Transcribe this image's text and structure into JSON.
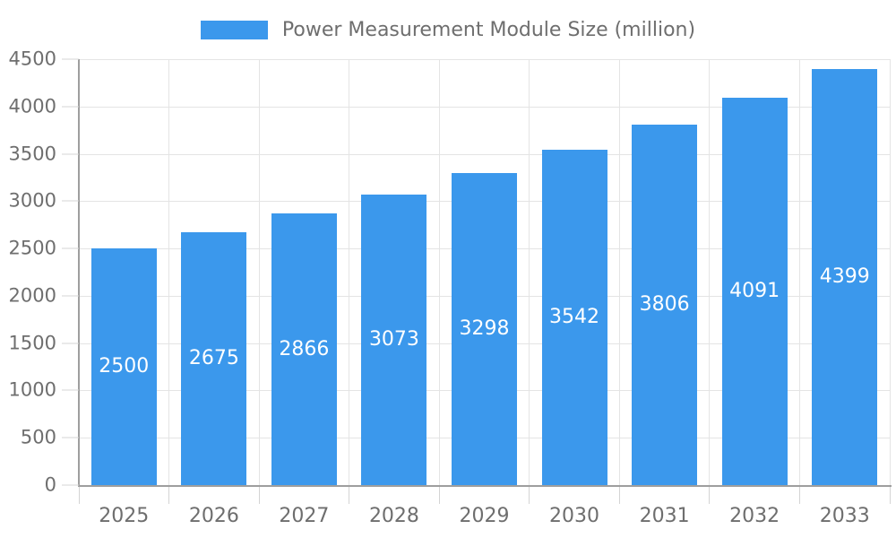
{
  "legend": {
    "label": "Power Measurement Module Size (million)"
  },
  "chart_data": {
    "type": "bar",
    "title": "Power Measurement Module Size (million)",
    "categories": [
      "2025",
      "2026",
      "2027",
      "2028",
      "2029",
      "2030",
      "2031",
      "2032",
      "2033"
    ],
    "values": [
      2500,
      2675,
      2866,
      3073,
      3298,
      3542,
      3806,
      4091,
      4399
    ],
    "series_name": "Power Measurement Module Size (million)",
    "xlabel": "",
    "ylabel": "",
    "ylim": [
      0,
      4500
    ],
    "yticks": [
      0,
      500,
      1000,
      1500,
      2000,
      2500,
      3000,
      3500,
      4000,
      4500
    ],
    "grid": true,
    "legend_position": "top-center",
    "value_labels": "inside-center",
    "colors": {
      "bar": "#3b98ec",
      "grid": "#e4e4e4",
      "tick": "#d4d4d4",
      "axis": "#9e9e9e",
      "text": "#6e6e6e",
      "value_label": "#ffffff",
      "background": "#ffffff"
    }
  }
}
